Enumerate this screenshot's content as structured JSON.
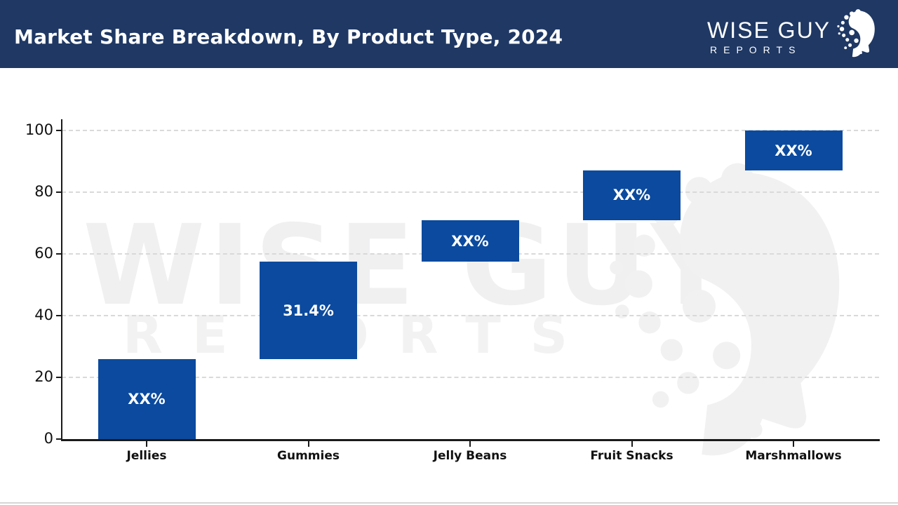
{
  "header": {
    "title": "Market Share Breakdown, By Product Type, 2024",
    "logo": {
      "brand_top": "WISE GUY",
      "brand_bottom": "REPORTS"
    }
  },
  "watermark": {
    "line1": "WISE GUY",
    "line2": "REPORTS"
  },
  "colors": {
    "header_bg": "#1f3864",
    "bar_fill": "#0b4a9e",
    "bar_label_text": "#ffffff",
    "axis": "#1a1a1a",
    "gridline": "#d9d9d9",
    "watermark": "#f0f0f1"
  },
  "chart_data": {
    "type": "bar",
    "subtype": "waterfall-floating-bars",
    "title": "Market Share Breakdown, By Product Type, 2024",
    "categories": [
      "Jellies",
      "Gummies",
      "Jelly Beans",
      "Fruit Snacks",
      "Marshmallows"
    ],
    "segments": [
      {
        "category": "Jellies",
        "base": 0,
        "top": 26,
        "value": 26,
        "label": "XX%"
      },
      {
        "category": "Gummies",
        "base": 26,
        "top": 57.4,
        "value": 31.4,
        "label": "31.4%"
      },
      {
        "category": "Jelly Beans",
        "base": 57.4,
        "top": 71,
        "value": 13.6,
        "label": "XX%"
      },
      {
        "category": "Fruit Snacks",
        "base": 71,
        "top": 87,
        "value": 16,
        "label": "XX%"
      },
      {
        "category": "Marshmallows",
        "base": 87,
        "top": 100,
        "value": 13,
        "label": "XX%"
      }
    ],
    "xlabel": "",
    "ylabel": "",
    "yticks": [
      0,
      20,
      40,
      60,
      80,
      100
    ],
    "ylim": [
      0,
      104
    ],
    "grid": "horizontal-dashed",
    "legend_position": "none",
    "bar_value_labels_position": "center"
  }
}
